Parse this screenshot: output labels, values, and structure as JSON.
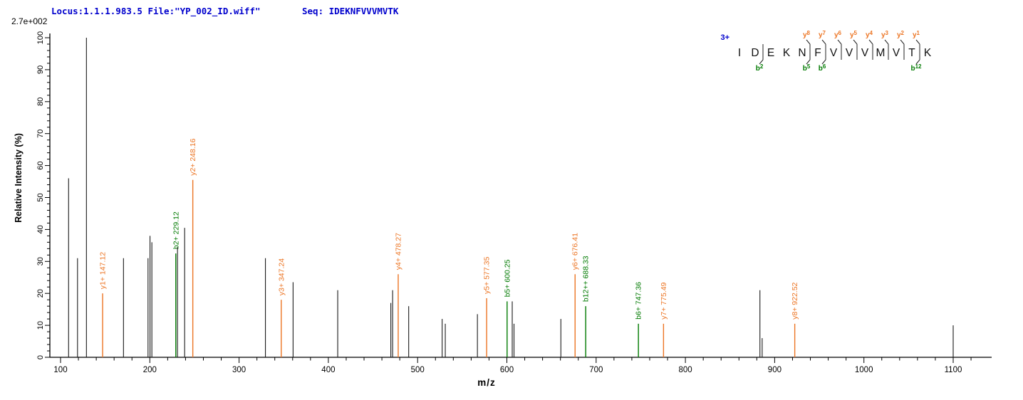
{
  "header": {
    "locus_file": "Locus:1.1.1.983.5 File:\"YP_002_ID.wiff\"",
    "seq": "Seq: IDEKNFVVVMVTK",
    "scale_note": "2.7e+002"
  },
  "colors": {
    "y_ion": "#EC7524",
    "b_ion": "#007A00",
    "peak": "#1a1a1a",
    "header_blue": "#0000CD",
    "charge_blue": "#0000CD",
    "axis": "#000000"
  },
  "chart_data": {
    "type": "bar",
    "xlabel": "m/z",
    "ylabel": "Relative  Intensity (%)",
    "xlim": [
      90,
      1140
    ],
    "ylim": [
      0,
      100
    ],
    "x_ticks": [
      100,
      200,
      300,
      400,
      500,
      600,
      700,
      800,
      900,
      1000,
      1100
    ],
    "x_minor_step": 20,
    "y_ticks": [
      0,
      10,
      20,
      30,
      40,
      50,
      60,
      70,
      80,
      90,
      100
    ],
    "y_minor_step": 2,
    "grid": false,
    "legend": "none",
    "peaks": [
      {
        "mz": 109,
        "intensity": 56
      },
      {
        "mz": 119,
        "intensity": 31
      },
      {
        "mz": 129,
        "intensity": 100
      },
      {
        "mz": 147.12,
        "intensity": 20,
        "ion": "y",
        "label": "y1+ 147.12"
      },
      {
        "mz": 170.5,
        "intensity": 31
      },
      {
        "mz": 198,
        "intensity": 31
      },
      {
        "mz": 200.2,
        "intensity": 38
      },
      {
        "mz": 202.3,
        "intensity": 36
      },
      {
        "mz": 229.12,
        "intensity": 32.5,
        "ion": "b",
        "label": "b2+ 229.12"
      },
      {
        "mz": 231,
        "intensity": 34.5
      },
      {
        "mz": 239,
        "intensity": 40.5
      },
      {
        "mz": 248.16,
        "intensity": 55.5,
        "ion": "y",
        "label": "y2+ 248.16"
      },
      {
        "mz": 329.5,
        "intensity": 31
      },
      {
        "mz": 347.24,
        "intensity": 18,
        "ion": "y",
        "label": "y3+ 347.24"
      },
      {
        "mz": 360.5,
        "intensity": 23.5
      },
      {
        "mz": 410.5,
        "intensity": 21
      },
      {
        "mz": 470,
        "intensity": 17
      },
      {
        "mz": 472,
        "intensity": 21
      },
      {
        "mz": 478.27,
        "intensity": 26,
        "ion": "y",
        "label": "y4+ 478.27"
      },
      {
        "mz": 490,
        "intensity": 16
      },
      {
        "mz": 527.5,
        "intensity": 12
      },
      {
        "mz": 531,
        "intensity": 10.5
      },
      {
        "mz": 567,
        "intensity": 13.5
      },
      {
        "mz": 577.35,
        "intensity": 18.5,
        "ion": "y",
        "label": "y5+ 577.35"
      },
      {
        "mz": 600.25,
        "intensity": 17.5,
        "ion": "b",
        "label": "b5+ 600.25"
      },
      {
        "mz": 606,
        "intensity": 17.5
      },
      {
        "mz": 608,
        "intensity": 10.5
      },
      {
        "mz": 660.5,
        "intensity": 12
      },
      {
        "mz": 676.41,
        "intensity": 26,
        "ion": "y",
        "label": "y6+ 676.41"
      },
      {
        "mz": 688.33,
        "intensity": 16,
        "ion": "b",
        "label": "b12++ 688.33"
      },
      {
        "mz": 747.36,
        "intensity": 10.5,
        "ion": "b",
        "label": "b6+ 747.36"
      },
      {
        "mz": 775.49,
        "intensity": 10.5,
        "ion": "y",
        "label": "y7+ 775.49"
      },
      {
        "mz": 883.5,
        "intensity": 21
      },
      {
        "mz": 886,
        "intensity": 6
      },
      {
        "mz": 922.52,
        "intensity": 10.5,
        "ion": "y",
        "label": "y8+ 922.52"
      },
      {
        "mz": 1100,
        "intensity": 10
      }
    ]
  },
  "peptide": {
    "charge_label": "3+",
    "residues": [
      "I",
      "D",
      "E",
      "K",
      "N",
      "F",
      "V",
      "V",
      "V",
      "M",
      "V",
      "T",
      "K"
    ],
    "fragments": [
      {
        "after_residue": 2,
        "b": "b2"
      },
      {
        "after_residue": 5,
        "y": "y8",
        "b": "b5"
      },
      {
        "after_residue": 6,
        "y": "y7",
        "b": "b6"
      },
      {
        "after_residue": 7,
        "y": "y6"
      },
      {
        "after_residue": 8,
        "y": "y5"
      },
      {
        "after_residue": 9,
        "y": "y4"
      },
      {
        "after_residue": 10,
        "y": "y3"
      },
      {
        "after_residue": 11,
        "y": "y2"
      },
      {
        "after_residue": 12,
        "y": "y1",
        "b": "b12"
      }
    ]
  }
}
